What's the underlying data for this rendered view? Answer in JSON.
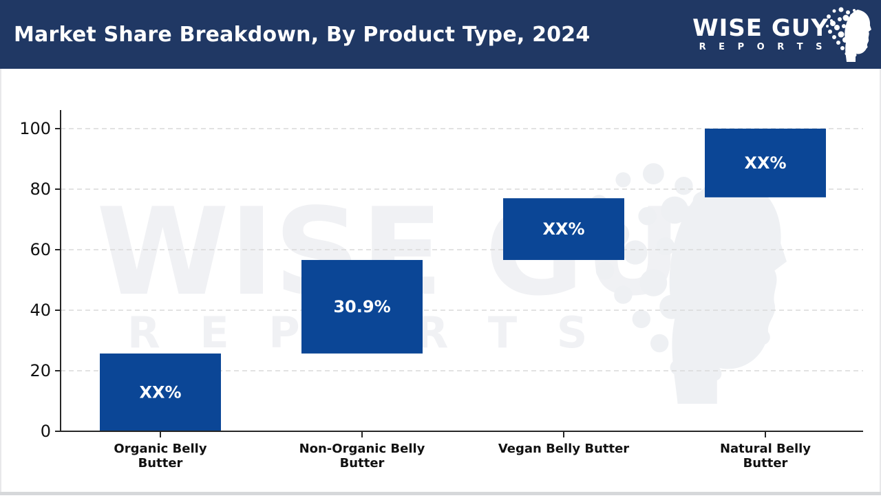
{
  "header": {
    "title": "Market Share Breakdown, By Product Type, 2024",
    "bg_color": "#203864",
    "logo": {
      "name": "WISE GUY",
      "sub": "R E P O R T S"
    }
  },
  "watermark": {
    "line1": "WISE GUY",
    "line2": "R E P O R T S",
    "color": "#f0f1f4"
  },
  "chart_data": {
    "type": "bar",
    "variant": "floating_waterfall",
    "title": "Market Share Breakdown, By Product Type, 2024",
    "categories": [
      "Organic Belly Butter",
      "Non-Organic Belly Butter",
      "Vegan Belly Butter",
      "Natural Belly Butter"
    ],
    "bars": [
      {
        "category": "Organic Belly Butter",
        "lines": [
          "Organic Belly",
          "Butter"
        ],
        "start": 0,
        "end": 25.7,
        "label": "XX%"
      },
      {
        "category": "Non-Organic Belly Butter",
        "lines": [
          "Non-Organic Belly",
          "Butter"
        ],
        "start": 25.7,
        "end": 56.6,
        "label": "30.9%"
      },
      {
        "category": "Vegan Belly Butter",
        "lines": [
          "Vegan Belly Butter"
        ],
        "start": 56.6,
        "end": 77.0,
        "label": "XX%"
      },
      {
        "category": "Natural Belly Butter",
        "lines": [
          "Natural Belly",
          "Butter"
        ],
        "start": 77.3,
        "end": 100,
        "label": "XX%"
      }
    ],
    "xlabel": "",
    "ylabel": "",
    "ylim": [
      0,
      100
    ],
    "yticks": [
      0,
      20,
      40,
      60,
      80,
      100
    ],
    "grid": {
      "horizontal": true,
      "style": "dashed",
      "color": "#d9d9d9"
    },
    "legend": null,
    "colors": {
      "bar": "#0b4696",
      "bar_label": "#ffffff",
      "axis": "#262626",
      "tick_label": "#111111"
    }
  }
}
